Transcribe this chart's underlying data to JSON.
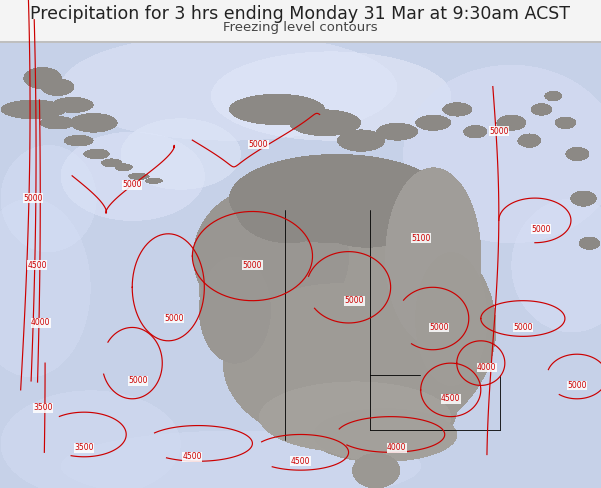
{
  "title": "Precipitation for 3 hrs ending Monday 31 Mar at 9:30am ACST",
  "subtitle": "Freezing level contours",
  "title_fontsize": 12.5,
  "subtitle_fontsize": 9.5,
  "title_color": "#222222",
  "subtitle_color": "#444444",
  "background_color": "#ffffff",
  "header_bg": "#eeeeee",
  "fig_width": 6.01,
  "fig_height": 4.88,
  "dpi": 100
}
